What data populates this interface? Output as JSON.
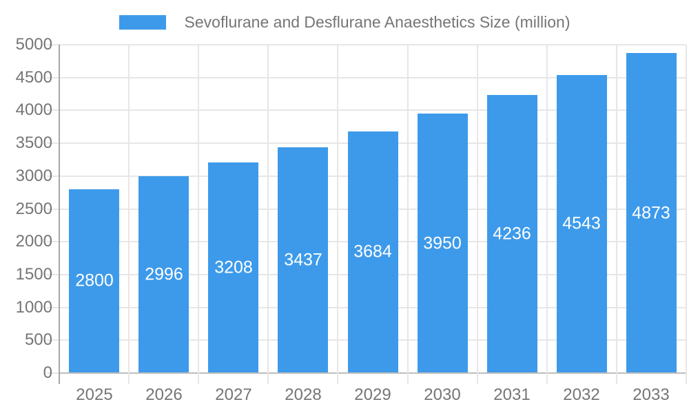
{
  "chart_data": {
    "type": "bar",
    "title": "Sevoflurane and Desflurane Anaesthetics Size (million)",
    "categories": [
      "2025",
      "2026",
      "2027",
      "2028",
      "2029",
      "2030",
      "2031",
      "2032",
      "2033"
    ],
    "values": [
      2800,
      2996,
      3208,
      3437,
      3684,
      3950,
      4236,
      4543,
      4873
    ],
    "xlabel": "",
    "ylabel": "",
    "ylim": [
      0,
      5000
    ],
    "yticks": [
      0,
      500,
      1000,
      1500,
      2000,
      2500,
      3000,
      3500,
      4000,
      4500,
      5000
    ],
    "grid": true,
    "legend_position": "top",
    "colors": {
      "bar": "#3d9aea",
      "grid": "#e6e6e6",
      "y_axis_line": "#a6a6a6",
      "baseline": "#bdbdbd",
      "axis_text": "#757575",
      "title_text": "#757575",
      "value_label_text": "#ffffff",
      "background": "#ffffff"
    }
  }
}
